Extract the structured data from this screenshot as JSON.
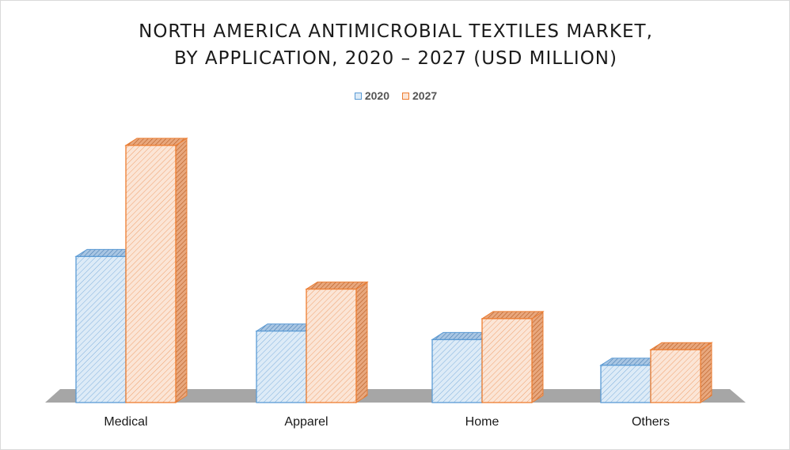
{
  "chart_data": {
    "type": "bar",
    "title_line1": "NORTH AMERICA ANTIMICROBIAL TEXTILES MARKET,",
    "title_line2": "BY APPLICATION, 2020 – 2027 (USD MILLION)",
    "categories": [
      "Medical",
      "Apparel",
      "Home",
      "Others"
    ],
    "series": [
      {
        "name": "2020",
        "values": [
          188,
          92,
          81,
          48
        ],
        "color": "#5b9bd5",
        "fill": "#ddebf7"
      },
      {
        "name": "2027",
        "values": [
          331,
          146,
          108,
          68
        ],
        "color": "#ed7d31",
        "fill": "#fbe5d6"
      }
    ],
    "xlabel": "",
    "ylabel": "",
    "ylim": [
      0,
      340
    ],
    "grid": false,
    "legend_position": "top",
    "style": "3d-clustered-column"
  }
}
